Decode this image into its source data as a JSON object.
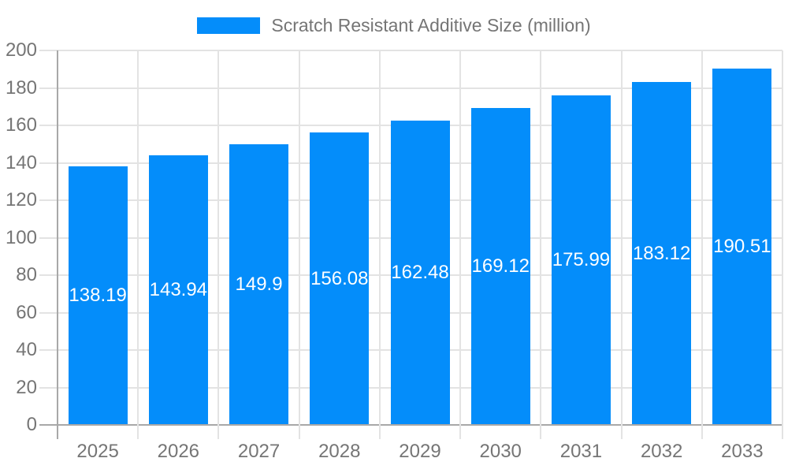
{
  "legend": {
    "label": "Scratch Resistant Additive Size (million)"
  },
  "chart_data": {
    "type": "bar",
    "title": "Scratch Resistant Additive Size (million)",
    "categories": [
      "2025",
      "2026",
      "2027",
      "2028",
      "2029",
      "2030",
      "2031",
      "2032",
      "2033"
    ],
    "values": [
      138.19,
      143.94,
      149.9,
      156.08,
      162.48,
      169.12,
      175.99,
      183.12,
      190.51
    ],
    "xlabel": "",
    "ylabel": "",
    "ylim": [
      0,
      200
    ],
    "ytick_step": 20,
    "grid": true,
    "legend_position": "top",
    "value_labels": "inside-center",
    "colors": {
      "bar": "#048DFA",
      "value_label": "#ffffff",
      "axis_text": "#757575",
      "legend_text": "#757575",
      "gridline": "#e3e3e3",
      "axis_line": "#a8a8a8",
      "background": "#ffffff"
    }
  }
}
